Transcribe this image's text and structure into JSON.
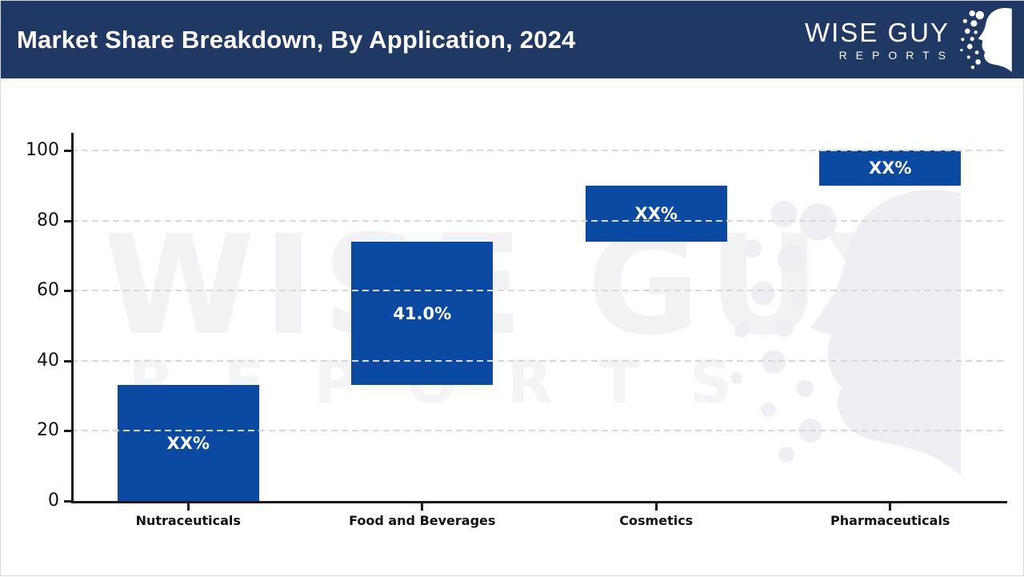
{
  "header": {
    "title": "Market Share Breakdown, By Application, 2024",
    "background_color": "#203864",
    "logo": {
      "line1": "WISE GUY",
      "line2": "REPORTS"
    }
  },
  "watermark": {
    "line1": "WISE GUY",
    "line2": "REPORTS"
  },
  "chart_data": {
    "type": "bar",
    "subtype": "waterfall",
    "title": "Market Share Breakdown, By Application, 2024",
    "categories": [
      "Nutraceuticals",
      "Food and Beverages",
      "Cosmetics",
      "Pharmaceuticals"
    ],
    "segments": [
      {
        "category": "Nutraceuticals",
        "start": 0,
        "end": 33,
        "label": "XX%"
      },
      {
        "category": "Food and Beverages",
        "start": 33,
        "end": 74,
        "label": "41.0%"
      },
      {
        "category": "Cosmetics",
        "start": 74,
        "end": 90,
        "label": "XX%"
      },
      {
        "category": "Pharmaceuticals",
        "start": 90,
        "end": 100,
        "label": "XX%"
      }
    ],
    "values": [
      33,
      41,
      16,
      10
    ],
    "xlabel": "",
    "ylabel": "",
    "ylim": [
      0,
      100
    ],
    "yticks": [
      0,
      20,
      40,
      60,
      80,
      100
    ],
    "grid": "horizontal-dashed",
    "legend": "none",
    "bar_color": "#0b4aa2",
    "bar_label_color": "#ffffff",
    "grid_color": "#d9d9d9",
    "axis_color": "#1a1a1a"
  }
}
